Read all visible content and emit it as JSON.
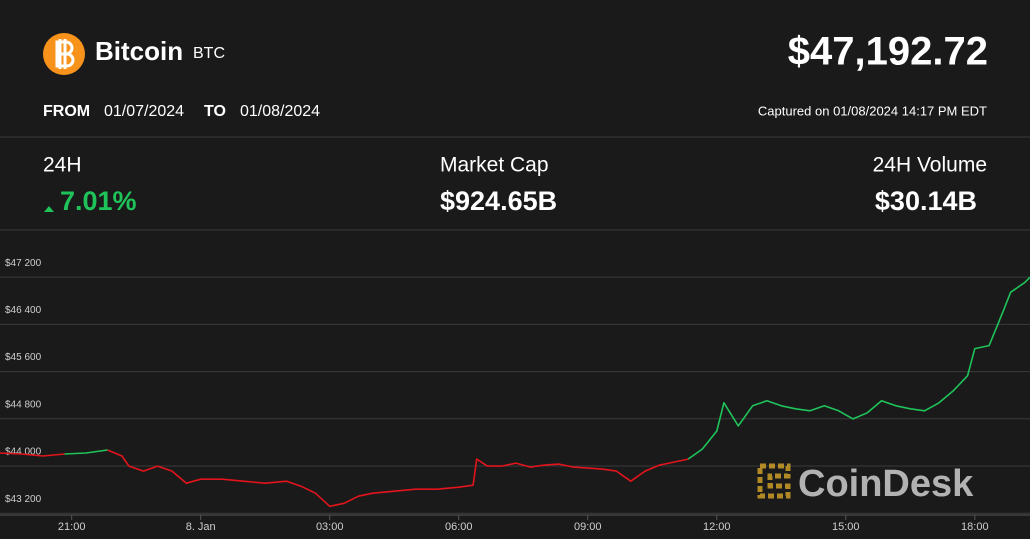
{
  "header": {
    "name": "Bitcoin",
    "symbol": "BTC",
    "price": "$47,192.72",
    "from_label": "FROM",
    "from": "01/07/2024",
    "to_label": "TO",
    "to": "01/08/2024",
    "captured": "Captured on 01/08/2024 14:17 PM EDT"
  },
  "stats": [
    {
      "label": "24H",
      "value": "7.01%"
    },
    {
      "label": "Market Cap",
      "value": "$924.65B"
    },
    {
      "label": "24H Volume",
      "value": "$30.14B"
    }
  ],
  "watermark": "CoinDesk",
  "chart_data": {
    "type": "line",
    "color_up": "#1fc35a",
    "color_down": "#e3141c",
    "grid": true,
    "x": [
      "19:20",
      "19:50",
      "20:20",
      "20:50",
      "21:20",
      "21:50",
      "22:10",
      "22:20",
      "22:40",
      "23:00",
      "23:20",
      "23:40",
      "00:00",
      "00:30",
      "01:00",
      "01:30",
      "02:00",
      "02:20",
      "02:40",
      "03:00",
      "03:20",
      "03:40",
      "04:00",
      "04:30",
      "05:00",
      "05:30",
      "06:00",
      "06:20",
      "06:25",
      "06:40",
      "07:00",
      "07:20",
      "07:40",
      "08:00",
      "08:20",
      "08:40",
      "09:00",
      "09:20",
      "09:40",
      "10:00",
      "10:20",
      "10:40",
      "11:00",
      "11:20",
      "11:40",
      "12:00",
      "12:10",
      "12:30",
      "12:50",
      "13:10",
      "13:30",
      "13:50",
      "14:10",
      "14:30",
      "14:50",
      "15:10",
      "15:30",
      "15:50",
      "16:10",
      "16:30",
      "16:50",
      "17:10",
      "17:30",
      "17:50",
      "18:00",
      "18:20",
      "18:40",
      "18:50",
      "19:10",
      "19:17"
    ],
    "values": [
      44220,
      44203,
      44169,
      44203,
      44220,
      44271,
      44169,
      43999,
      43914,
      43999,
      43914,
      43709,
      43777,
      43777,
      43743,
      43709,
      43743,
      43658,
      43539,
      43318,
      43369,
      43488,
      43539,
      43573,
      43607,
      43607,
      43641,
      43675,
      44118,
      43999,
      43999,
      44050,
      43982,
      44016,
      44033,
      43982,
      43965,
      43948,
      43914,
      43743,
      43914,
      44016,
      44067,
      44118,
      44288,
      44594,
      45071,
      44680,
      45020,
      45105,
      45020,
      44969,
      44935,
      45020,
      44935,
      44799,
      44901,
      45105,
      45020,
      44969,
      44935,
      45071,
      45275,
      45530,
      45990,
      46041,
      46637,
      46943,
      47114,
      47199
    ],
    "xlim": [
      "19:20",
      "19:17"
    ],
    "xticks": [
      "21:00",
      {
        "value": "00:00",
        "label": "8. Jan"
      },
      "03:00",
      "06:00",
      "09:00",
      "12:00",
      "15:00",
      "18:00"
    ],
    "ylim": [
      43170,
      47830
    ],
    "yticks": [
      {
        "value": 47200,
        "label": "$47 200"
      },
      {
        "value": 46400,
        "label": "$46 400"
      },
      {
        "value": 45600,
        "label": "$45 600"
      },
      {
        "value": 44800,
        "label": "$44 800"
      },
      {
        "value": 44000,
        "label": "$44 000"
      },
      {
        "value": 43200,
        "label": "$43 200"
      }
    ]
  }
}
